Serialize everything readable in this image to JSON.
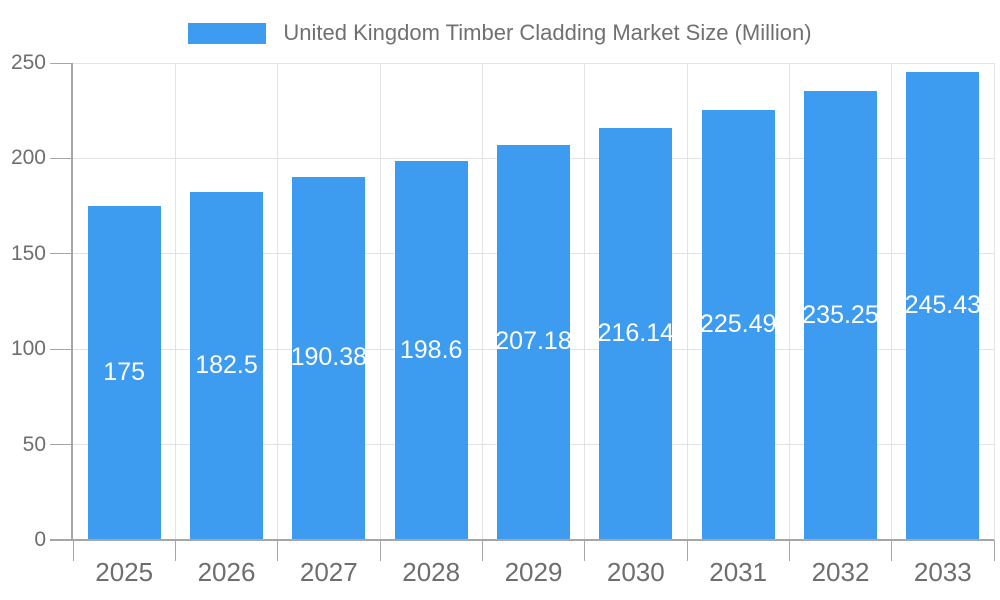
{
  "chart_data": {
    "type": "bar",
    "title": "United Kingdom Timber Cladding Market Size (Million)",
    "legend": "United Kingdom Timber Cladding Market Size (Million)",
    "categories": [
      "2025",
      "2026",
      "2027",
      "2028",
      "2029",
      "2030",
      "2031",
      "2032",
      "2033"
    ],
    "values": [
      175,
      182.5,
      190.38,
      198.6,
      207.18,
      216.14,
      225.49,
      235.25,
      245.43
    ],
    "value_labels": [
      "175",
      "182.5",
      "190.38",
      "198.6",
      "207.18",
      "216.14",
      "225.49",
      "235.25",
      "245.43"
    ],
    "xlabel": "",
    "ylabel": "",
    "ylim": [
      0,
      250
    ],
    "ytick_step": 50,
    "ytick_labels": [
      "0",
      "50",
      "100",
      "150",
      "200",
      "250"
    ],
    "grid": "on",
    "legend_position": "top-center",
    "colors": {
      "bar": "#3D9BF0",
      "grid_line": "#E3E3E3",
      "axis_line": "#A6A6A6",
      "axis_label": "#6E6E6E",
      "legend_text": "#707070",
      "bar_label": "#FFFFFF",
      "background": "#FFFFFF"
    }
  }
}
